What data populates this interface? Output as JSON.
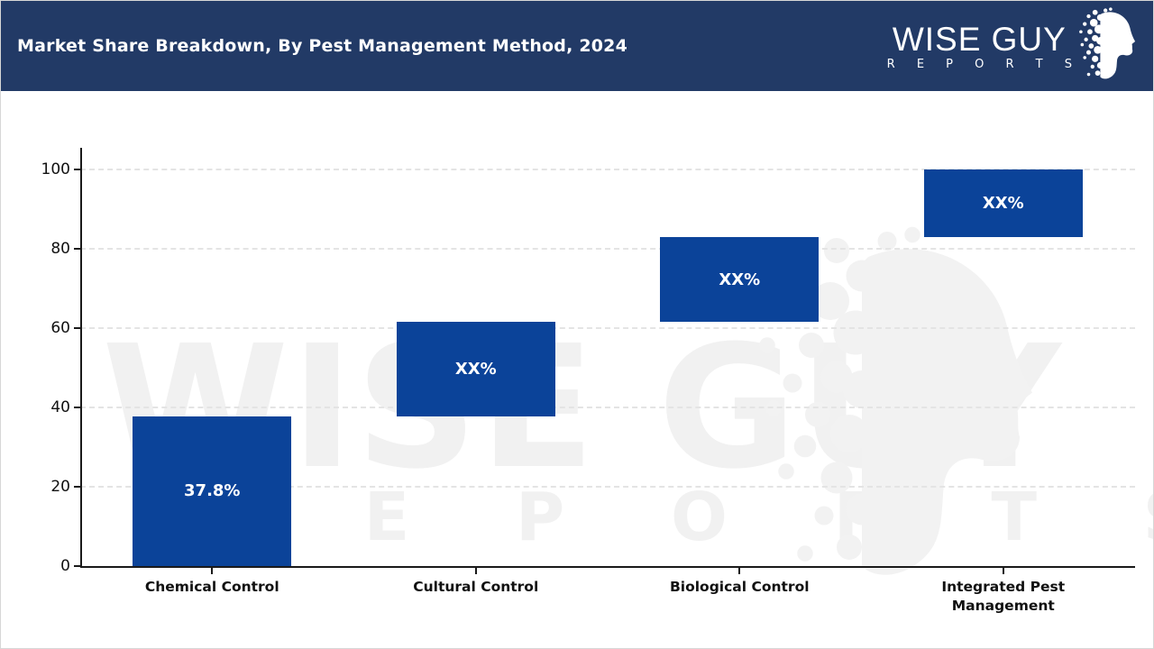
{
  "header": {
    "title": "Market Share Breakdown, By Pest Management Method, 2024",
    "bg_color": "#223A66",
    "logo": {
      "line1": "WISE GUY",
      "line2": "R E P O R T S",
      "icon": "dotted-head-profile"
    }
  },
  "watermark": {
    "line1": "WISE GUY",
    "line2": "R E P O R T S",
    "icon": "dotted-head-profile"
  },
  "chart_data": {
    "type": "bar",
    "subtype": "floating-waterfall",
    "title": "Market Share Breakdown, By Pest Management Method, 2024",
    "categories": [
      "Chemical Control",
      "Cultural Control",
      "Biological Control",
      "Integrated Pest Management"
    ],
    "series": [
      {
        "name": "Market Share %",
        "segments": [
          {
            "start": 0,
            "end": 37.8,
            "label": "37.8%"
          },
          {
            "start": 37.8,
            "end": 61.5,
            "label": "XX%"
          },
          {
            "start": 61.5,
            "end": 83.0,
            "label": "XX%"
          },
          {
            "start": 83.0,
            "end": 100.0,
            "label": "XX%"
          }
        ]
      }
    ],
    "xlabel": "",
    "ylabel": "",
    "ylim": [
      0,
      100
    ],
    "yticks": [
      0,
      20,
      40,
      60,
      80,
      100
    ],
    "grid": "horizontal-dashed",
    "legend": "none",
    "bar_color": "#0B4399",
    "label_color": "#ffffff",
    "axis_color": "#1a1a1a"
  }
}
